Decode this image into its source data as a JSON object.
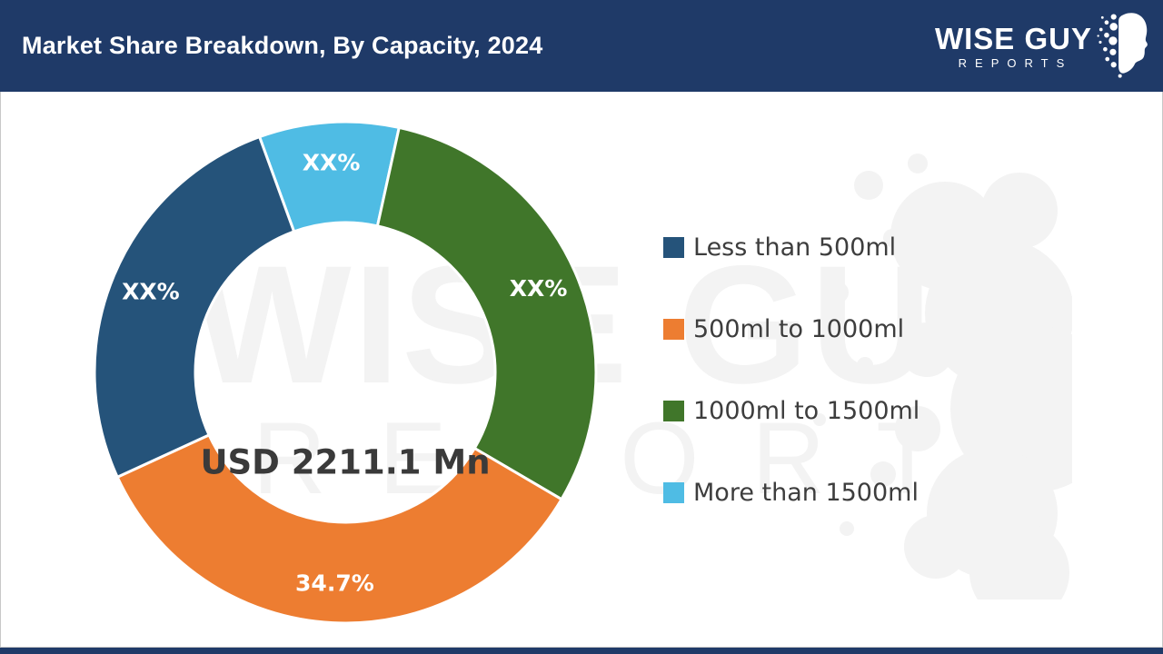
{
  "header": {
    "title": "Market Share Breakdown, By Capacity, 2024",
    "bg_color": "#1f3a68",
    "logo": {
      "wordmark": "WISE GUY",
      "subtext": "REPORTS"
    }
  },
  "watermark": {
    "wordmark": "WISE GUY",
    "subtext": "REPORTS"
  },
  "chart_data": {
    "type": "pie",
    "donut": true,
    "title": "Market Share Breakdown, By Capacity, 2024",
    "center_total": "USD 2211.1 Mn",
    "legend_position": "right",
    "start_angle_deg": -20,
    "draw_order": [
      3,
      2,
      1,
      0
    ],
    "segments": [
      {
        "name": "Less than 500ml",
        "value_pct": 26.3,
        "displayed_label": "XX%",
        "color": "#25537a"
      },
      {
        "name": "500ml to 1000ml",
        "value_pct": 34.7,
        "displayed_label": "34.7%",
        "color": "#ed7d31"
      },
      {
        "name": "1000ml to 1500ml",
        "value_pct": 30.0,
        "displayed_label": "XX%",
        "color": "#40762a"
      },
      {
        "name": "More than 1500ml",
        "value_pct": 9.0,
        "displayed_label": "XX%",
        "color": "#4fbce4"
      }
    ]
  }
}
